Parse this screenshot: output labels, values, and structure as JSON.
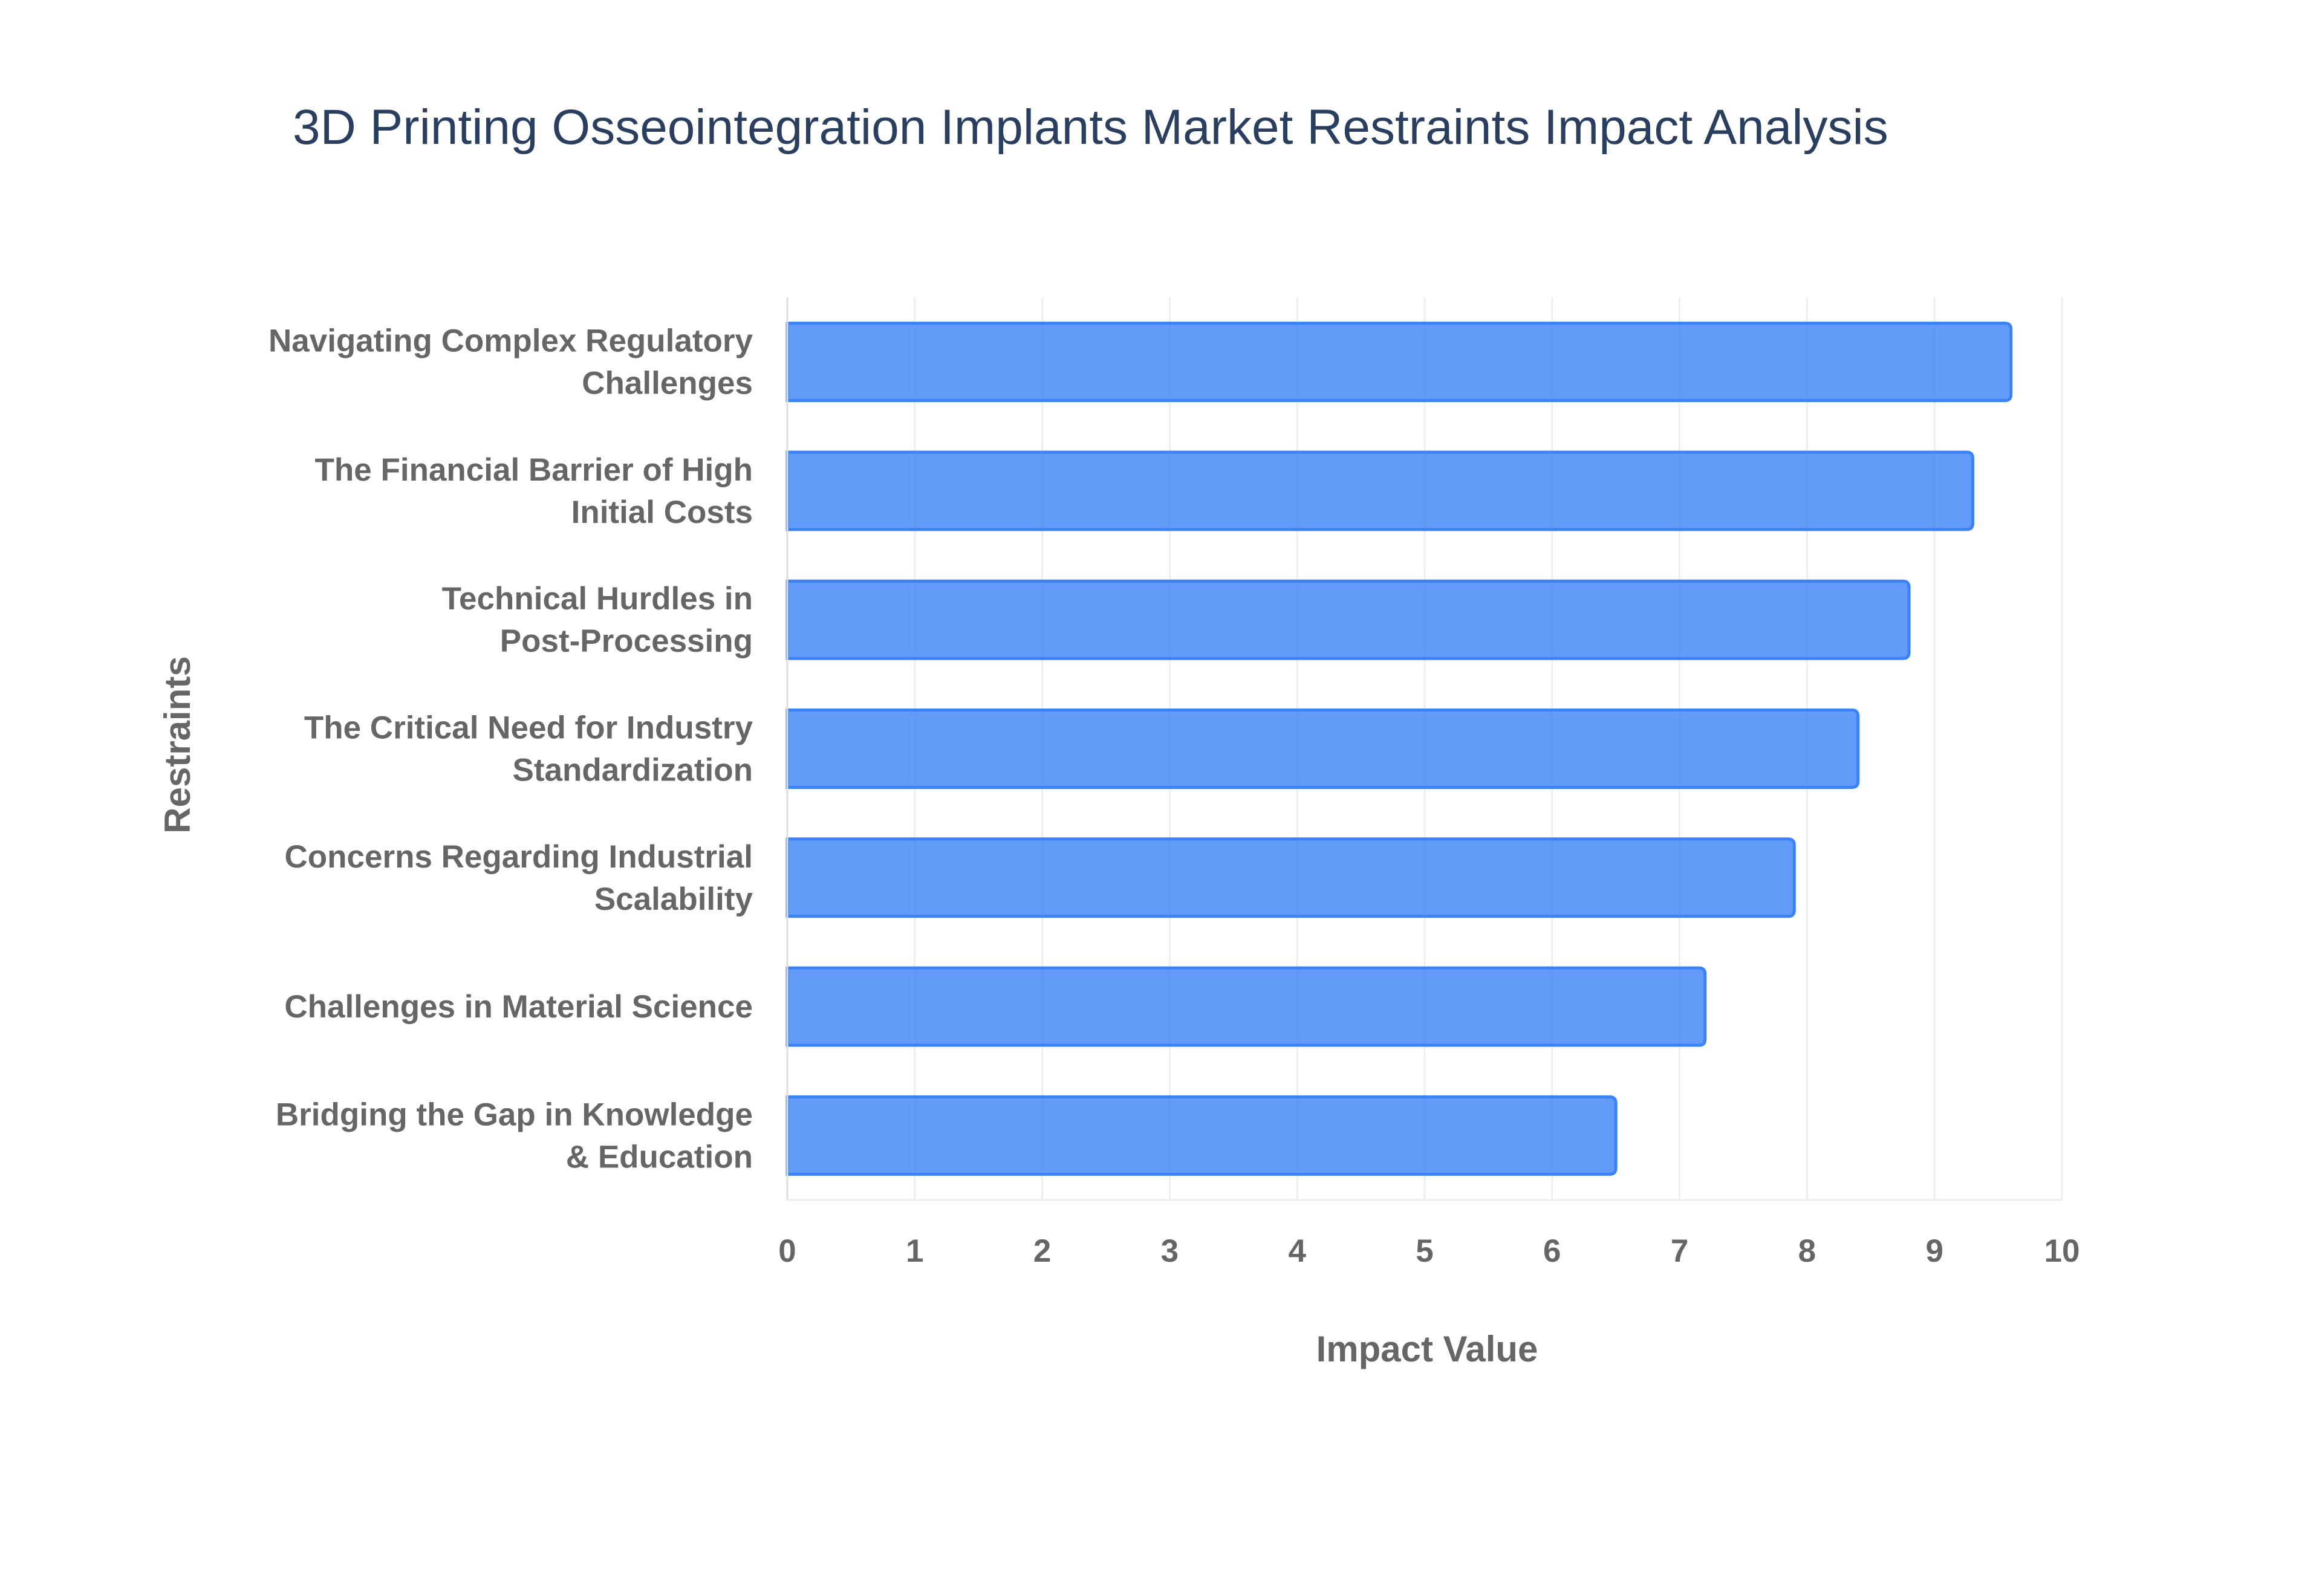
{
  "chart_data": {
    "type": "bar",
    "orientation": "horizontal",
    "title": "3D Printing Osseointegration Implants Market Restraints Impact Analysis",
    "xlabel": "Impact Value",
    "ylabel": "Restraints",
    "xlim": [
      0,
      10
    ],
    "x_ticks": [
      "0",
      "1",
      "2",
      "3",
      "4",
      "5",
      "6",
      "7",
      "8",
      "9",
      "10"
    ],
    "grid": true,
    "legend": "none",
    "bar_color": "#3b82f6",
    "categories": [
      [
        "Navigating Complex Regulatory",
        "Challenges"
      ],
      [
        "The Financial Barrier of High",
        "Initial Costs"
      ],
      [
        "Technical Hurdles in",
        "Post-Processing"
      ],
      [
        "The Critical Need for Industry",
        "Standardization"
      ],
      [
        "Concerns Regarding Industrial",
        "Scalability"
      ],
      [
        "Challenges in Material Science"
      ],
      [
        "Bridging the Gap in Knowledge",
        "& Education"
      ]
    ],
    "values": [
      9.6,
      9.3,
      8.8,
      8.4,
      7.9,
      7.2,
      6.5
    ]
  }
}
